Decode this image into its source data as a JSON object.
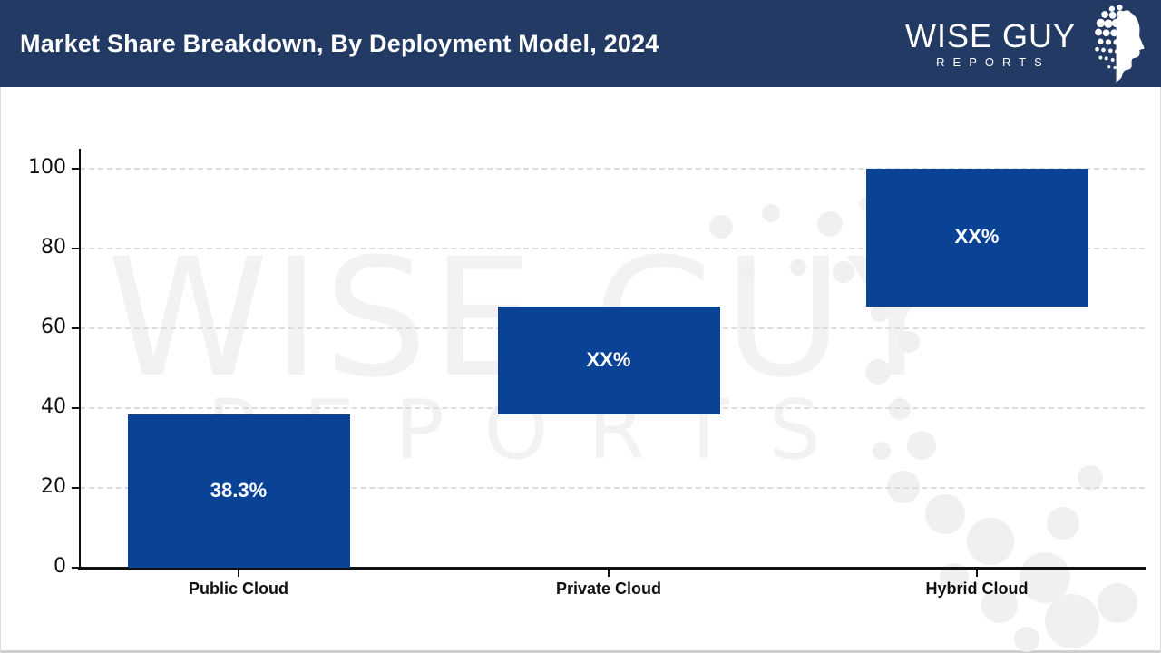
{
  "header": {
    "title": "Market Share Breakdown, By Deployment Model, 2024",
    "bg_color": "#223a64",
    "logo": {
      "wordmark": "WISE GUY",
      "subtext": "REPORTS"
    }
  },
  "watermark": {
    "line1": "WISE GUY",
    "line2": "REPORTS"
  },
  "chart_data": {
    "type": "bar",
    "subtype": "waterfall",
    "title": "Market Share Breakdown, By Deployment Model, 2024",
    "categories": [
      "Public Cloud",
      "Private Cloud",
      "Hybrid Cloud"
    ],
    "segments": [
      {
        "category": "Public Cloud",
        "start": 0,
        "end": 38.3,
        "label": "38.3%"
      },
      {
        "category": "Private Cloud",
        "start": 38.3,
        "end": 65.5,
        "label": "XX%"
      },
      {
        "category": "Hybrid Cloud",
        "start": 65.5,
        "end": 100,
        "label": "XX%"
      }
    ],
    "values_visible": [
      38.3,
      null,
      null
    ],
    "bar_color": "#0a4296",
    "label_color": "#ffffff",
    "xlabel": "",
    "ylabel": "",
    "ylim": [
      0,
      100
    ],
    "y_ticks": [
      0,
      20,
      40,
      60,
      80,
      100
    ],
    "grid": "horizontal-dashed",
    "grid_color": "#dcdcdc",
    "legend": "none"
  }
}
